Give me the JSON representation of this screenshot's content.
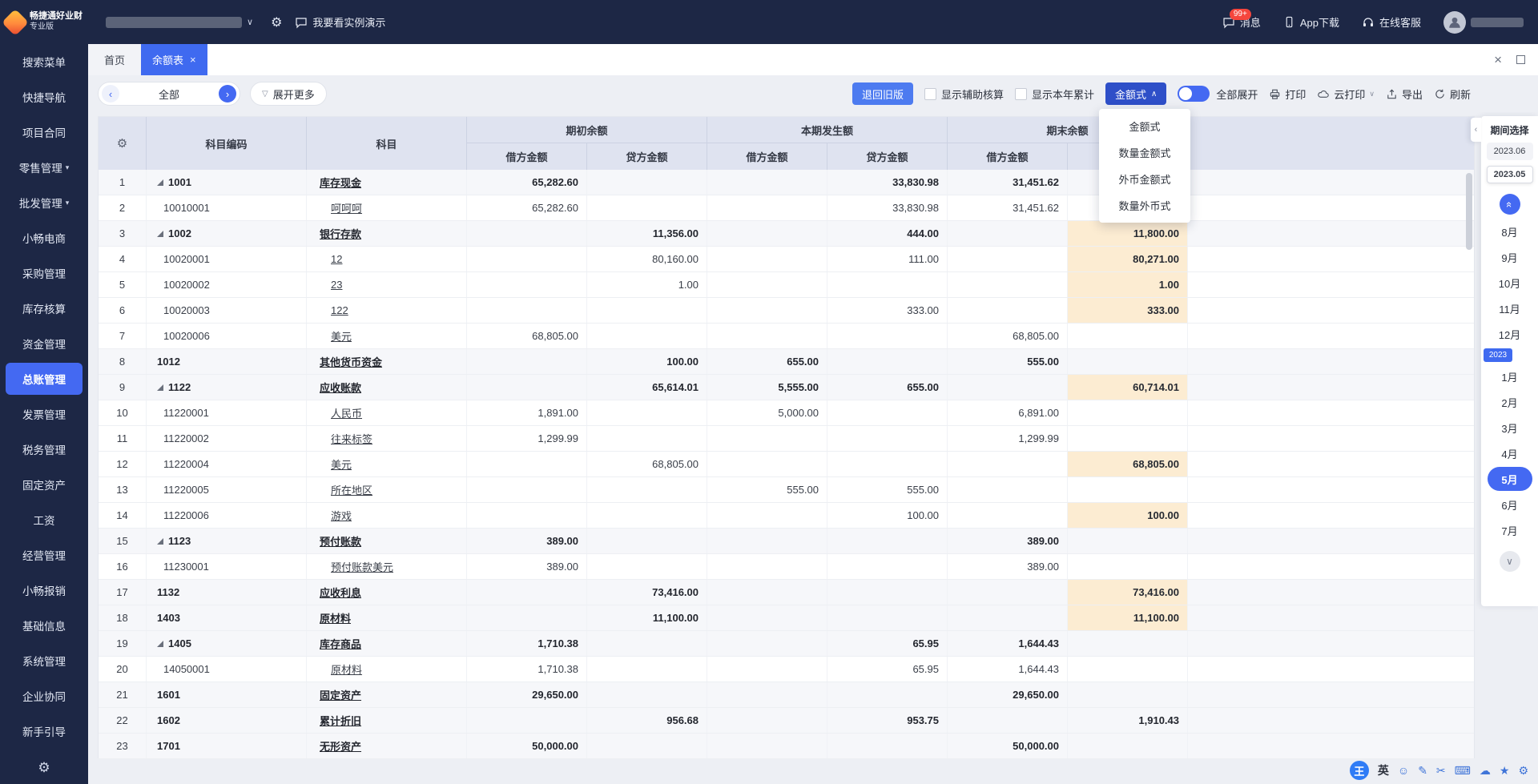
{
  "brand": {
    "line1": "畅捷通好业财",
    "line2": "专业版"
  },
  "topbar": {
    "demo_label": "我要看实例演示",
    "messages_label": "消息",
    "messages_badge": "99+",
    "app_download_label": "App下载",
    "support_label": "在线客服"
  },
  "sidebar": {
    "items": [
      {
        "label": "搜索菜单"
      },
      {
        "label": "快捷导航"
      },
      {
        "label": "项目合同"
      },
      {
        "label": "零售管理",
        "arrow": true
      },
      {
        "label": "批发管理",
        "arrow": true
      },
      {
        "label": "小畅电商"
      },
      {
        "label": "采购管理"
      },
      {
        "label": "库存核算"
      },
      {
        "label": "资金管理"
      },
      {
        "label": "总账管理",
        "active": true
      },
      {
        "label": "发票管理"
      },
      {
        "label": "税务管理"
      },
      {
        "label": "固定资产"
      },
      {
        "label": "工资"
      },
      {
        "label": "经营管理"
      },
      {
        "label": "小畅报销"
      },
      {
        "label": "基础信息"
      },
      {
        "label": "系统管理"
      },
      {
        "label": "企业协同"
      },
      {
        "label": "新手引导"
      }
    ]
  },
  "tabs": [
    {
      "label": "首页",
      "active": false,
      "closable": false
    },
    {
      "label": "余额表",
      "active": true,
      "closable": true
    }
  ],
  "toolbar": {
    "filter_all": "全部",
    "expand_more": "展开更多",
    "back_old": "退回旧版",
    "chk_aux": "显示辅助核算",
    "chk_ytd": "显示本年累计",
    "amount_style": "金额式",
    "expand_all": "全部展开",
    "print": "打印",
    "cloud_print": "云打印",
    "export": "导出",
    "refresh": "刷新"
  },
  "style_dropdown": {
    "items": [
      "金额式",
      "数量金额式",
      "外币金额式",
      "数量外币式"
    ]
  },
  "table": {
    "col_code": "科目编码",
    "col_subject": "科目",
    "col_debit": "借方金额",
    "col_credit": "贷方金额",
    "group_headers": [
      "期初余额",
      "本期发生额",
      "期末余额"
    ],
    "rows": [
      {
        "n": 1,
        "code": "1001",
        "name": "库存现金",
        "p": true,
        "x": true,
        "d1": "65,282.60",
        "c1": "",
        "d2": "",
        "c2": "33,830.98",
        "d3": "31,451.62",
        "c3": "",
        "hl": false
      },
      {
        "n": 2,
        "code": "10010001",
        "name": "呵呵呵",
        "p": false,
        "x": false,
        "d1": "65,282.60",
        "c1": "",
        "d2": "",
        "c2": "33,830.98",
        "d3": "31,451.62",
        "c3": "",
        "hl": false
      },
      {
        "n": 3,
        "code": "1002",
        "name": "银行存款",
        "p": true,
        "x": true,
        "d1": "",
        "c1": "11,356.00",
        "d2": "",
        "c2": "444.00",
        "d3": "",
        "c3": "11,800.00",
        "hl": true
      },
      {
        "n": 4,
        "code": "10020001",
        "name": "12",
        "p": false,
        "x": false,
        "d1": "",
        "c1": "80,160.00",
        "d2": "",
        "c2": "111.00",
        "d3": "",
        "c3": "80,271.00",
        "hl": true
      },
      {
        "n": 5,
        "code": "10020002",
        "name": "23",
        "p": false,
        "x": false,
        "d1": "",
        "c1": "1.00",
        "d2": "",
        "c2": "",
        "d3": "",
        "c3": "1.00",
        "hl": true
      },
      {
        "n": 6,
        "code": "10020003",
        "name": "122",
        "p": false,
        "x": false,
        "d1": "",
        "c1": "",
        "d2": "",
        "c2": "333.00",
        "d3": "",
        "c3": "333.00",
        "hl": true
      },
      {
        "n": 7,
        "code": "10020006",
        "name": "美元",
        "p": false,
        "x": false,
        "d1": "68,805.00",
        "c1": "",
        "d2": "",
        "c2": "",
        "d3": "68,805.00",
        "c3": "",
        "hl": false
      },
      {
        "n": 8,
        "code": "1012",
        "name": "其他货币资金",
        "p": true,
        "x": false,
        "d1": "",
        "c1": "100.00",
        "d2": "655.00",
        "c2": "",
        "d3": "555.00",
        "c3": "",
        "hl": false
      },
      {
        "n": 9,
        "code": "1122",
        "name": "应收账款",
        "p": true,
        "x": true,
        "d1": "",
        "c1": "65,614.01",
        "d2": "5,555.00",
        "c2": "655.00",
        "d3": "",
        "c3": "60,714.01",
        "hl": true
      },
      {
        "n": 10,
        "code": "11220001",
        "name": "人民币",
        "p": false,
        "x": false,
        "d1": "1,891.00",
        "c1": "",
        "d2": "5,000.00",
        "c2": "",
        "d3": "6,891.00",
        "c3": "",
        "hl": false
      },
      {
        "n": 11,
        "code": "11220002",
        "name": "往来标签",
        "p": false,
        "x": false,
        "d1": "1,299.99",
        "c1": "",
        "d2": "",
        "c2": "",
        "d3": "1,299.99",
        "c3": "",
        "hl": false
      },
      {
        "n": 12,
        "code": "11220004",
        "name": "美元",
        "p": false,
        "x": false,
        "d1": "",
        "c1": "68,805.00",
        "d2": "",
        "c2": "",
        "d3": "",
        "c3": "68,805.00",
        "hl": true
      },
      {
        "n": 13,
        "code": "11220005",
        "name": "所在地区",
        "p": false,
        "x": false,
        "d1": "",
        "c1": "",
        "d2": "555.00",
        "c2": "555.00",
        "d3": "",
        "c3": "",
        "hl": false
      },
      {
        "n": 14,
        "code": "11220006",
        "name": "游戏",
        "p": false,
        "x": false,
        "d1": "",
        "c1": "",
        "d2": "",
        "c2": "100.00",
        "d3": "",
        "c3": "100.00",
        "hl": true
      },
      {
        "n": 15,
        "code": "1123",
        "name": "预付账款",
        "p": true,
        "x": true,
        "d1": "389.00",
        "c1": "",
        "d2": "",
        "c2": "",
        "d3": "389.00",
        "c3": "",
        "hl": false
      },
      {
        "n": 16,
        "code": "11230001",
        "name": "预付账款美元",
        "p": false,
        "x": false,
        "d1": "389.00",
        "c1": "",
        "d2": "",
        "c2": "",
        "d3": "389.00",
        "c3": "",
        "hl": false
      },
      {
        "n": 17,
        "code": "1132",
        "name": "应收利息",
        "p": true,
        "x": false,
        "d1": "",
        "c1": "73,416.00",
        "d2": "",
        "c2": "",
        "d3": "",
        "c3": "73,416.00",
        "hl": true
      },
      {
        "n": 18,
        "code": "1403",
        "name": "原材料",
        "p": true,
        "x": false,
        "d1": "",
        "c1": "11,100.00",
        "d2": "",
        "c2": "",
        "d3": "",
        "c3": "11,100.00",
        "hl": true
      },
      {
        "n": 19,
        "code": "1405",
        "name": "库存商品",
        "p": true,
        "x": true,
        "d1": "1,710.38",
        "c1": "",
        "d2": "",
        "c2": "65.95",
        "d3": "1,644.43",
        "c3": "",
        "hl": false
      },
      {
        "n": 20,
        "code": "14050001",
        "name": "原材料",
        "p": false,
        "x": false,
        "d1": "1,710.38",
        "c1": "",
        "d2": "",
        "c2": "65.95",
        "d3": "1,644.43",
        "c3": "",
        "hl": false
      },
      {
        "n": 21,
        "code": "1601",
        "name": "固定资产",
        "p": true,
        "x": false,
        "d1": "29,650.00",
        "c1": "",
        "d2": "",
        "c2": "",
        "d3": "29,650.00",
        "c3": "",
        "hl": false
      },
      {
        "n": 22,
        "code": "1602",
        "name": "累计折旧",
        "p": true,
        "x": false,
        "d1": "",
        "c1": "956.68",
        "d2": "",
        "c2": "953.75",
        "d3": "",
        "c3": "1,910.43",
        "hl": false
      },
      {
        "n": 23,
        "code": "1701",
        "name": "无形资产",
        "p": true,
        "x": false,
        "d1": "50,000.00",
        "c1": "",
        "d2": "",
        "c2": "",
        "d3": "50,000.00",
        "c3": "",
        "hl": false
      }
    ]
  },
  "period_panel": {
    "title": "期间选择",
    "year_buttons": [
      "2023.06",
      "2023.05"
    ],
    "year_badge": "2023",
    "badge_before_month": "1月",
    "months": [
      "8月",
      "9月",
      "10月",
      "11月",
      "12月",
      "1月",
      "2月",
      "3月",
      "4月",
      "5月",
      "6月",
      "7月"
    ],
    "selected_month": "5月"
  },
  "ime": {
    "logo": "王",
    "lang": "英"
  }
}
